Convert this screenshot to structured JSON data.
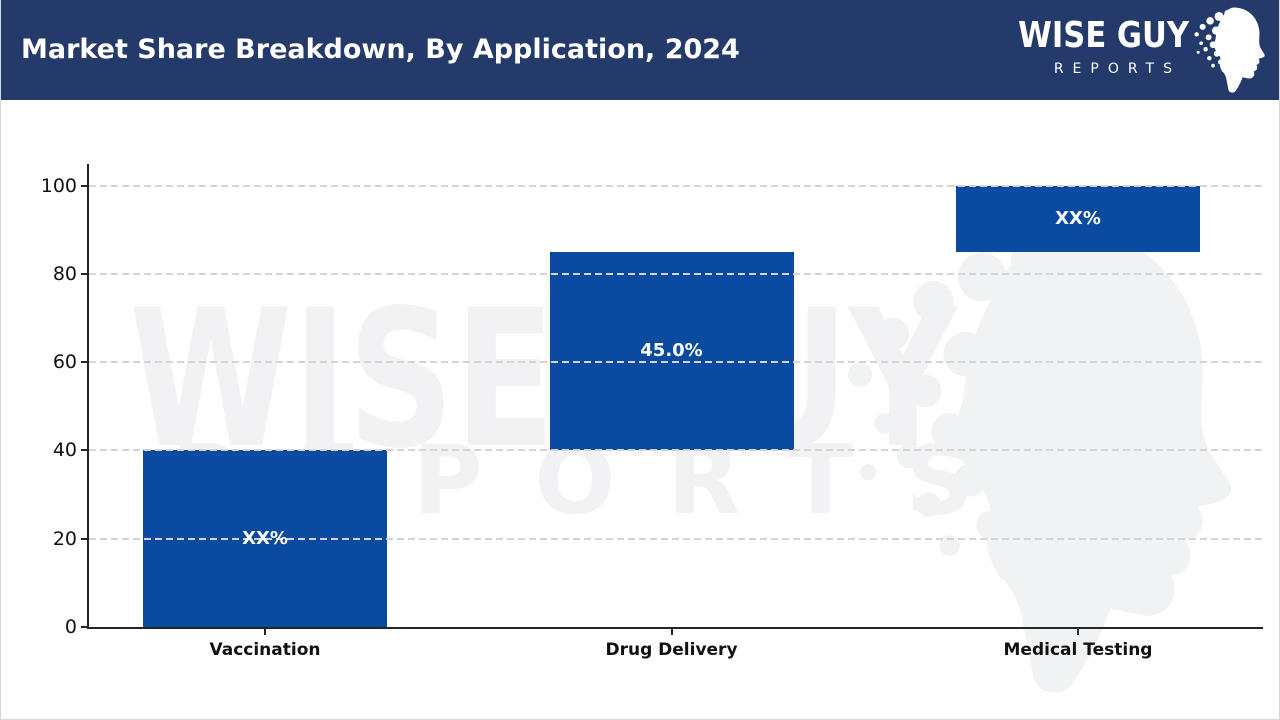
{
  "header": {
    "title": "Market Share Breakdown, By Application, 2024",
    "bg_color": "#233a6b",
    "logo": {
      "line1": "WISE GUY",
      "line2": "REPORTS"
    }
  },
  "watermark": {
    "line1": "WISE GUY",
    "line2": "REPORTS"
  },
  "chart_data": {
    "type": "bar",
    "variant": "waterfall",
    "title": "Market Share Breakdown, By Application, 2024",
    "categories": [
      "Vaccination",
      "Drug Delivery",
      "Medical Testing"
    ],
    "series": [
      {
        "name": "Market Share",
        "segments": [
          {
            "category": "Vaccination",
            "start": 0,
            "end": 40,
            "label": "XX%"
          },
          {
            "category": "Drug Delivery",
            "start": 40,
            "end": 85,
            "label": "45.0%"
          },
          {
            "category": "Medical Testing",
            "start": 85,
            "end": 100,
            "label": "XX%"
          }
        ]
      }
    ],
    "xlabel": "",
    "ylabel": "",
    "yticks": [
      0,
      20,
      40,
      60,
      80,
      100
    ],
    "ylim": [
      0,
      105
    ],
    "grid": "horizontal-dashed",
    "legend": "none",
    "bar_color": "#0a4aa0",
    "grid_color": "#d4d4d4",
    "axis_color": "#262626",
    "watermark_color": "#f2f2f4"
  }
}
